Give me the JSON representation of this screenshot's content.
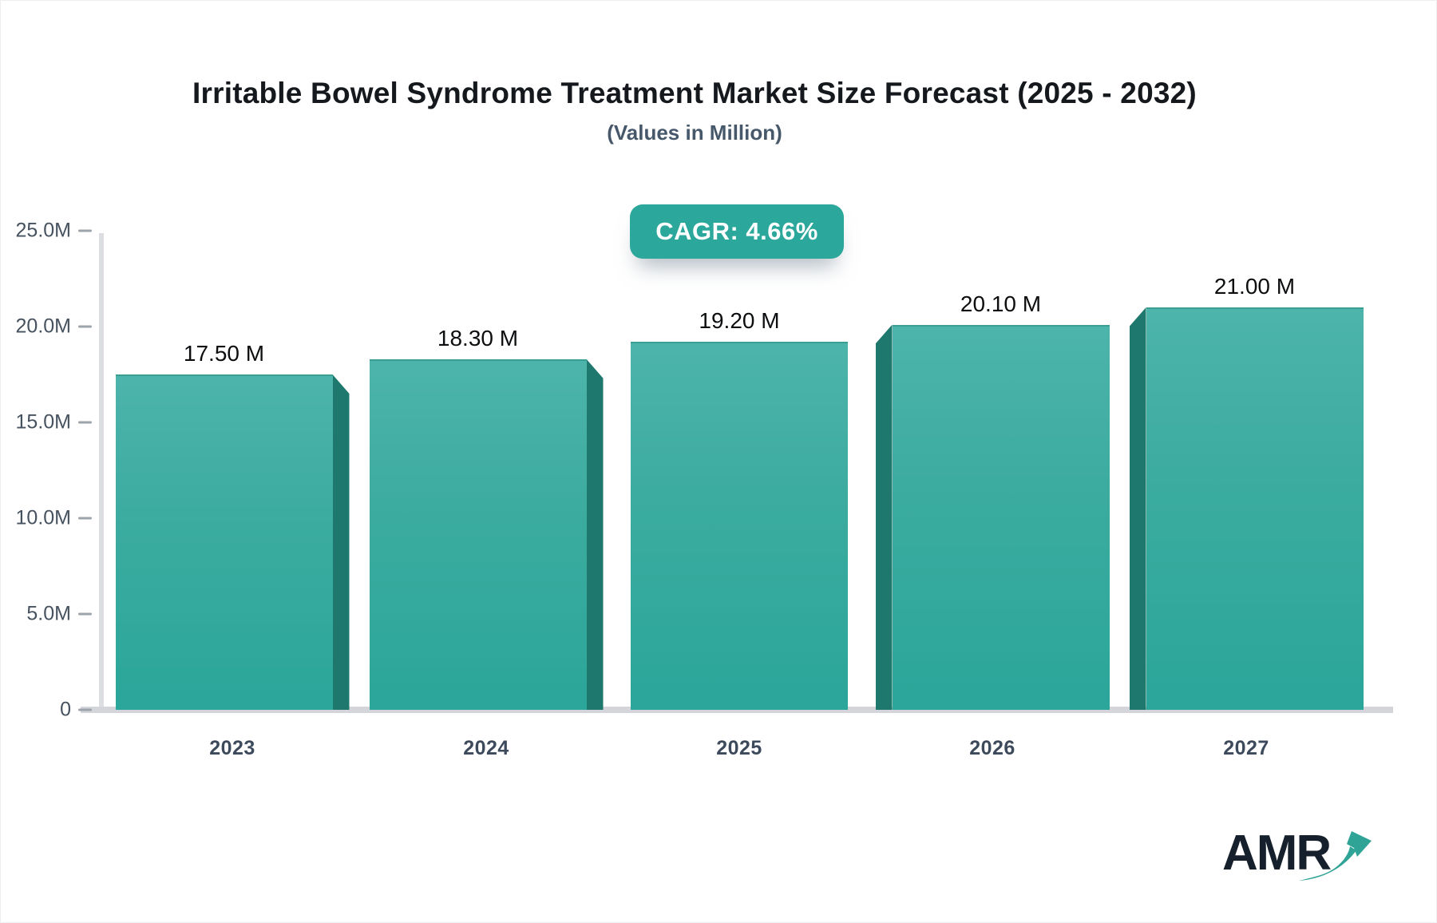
{
  "header": {
    "title": "Irritable Bowel Syndrome Treatment Market Size Forecast (2025 - 2032)",
    "subtitle": "(Values in Million)"
  },
  "badge": {
    "label": "CAGR: 4.66%",
    "background": "#2ba79b",
    "text_color": "#ffffff"
  },
  "chart_data": {
    "type": "bar",
    "title": "Irritable Bowel Syndrome Treatment Market Size Forecast (2025 - 2032)",
    "subtitle": "(Values in Million)",
    "unit": "Million",
    "categories": [
      "2023",
      "2024",
      "2025",
      "2026",
      "2027"
    ],
    "values": [
      17.5,
      18.3,
      19.2,
      20.1,
      21.0
    ],
    "value_labels": [
      "17.50 M",
      "18.30 M",
      "19.20 M",
      "20.10 M",
      "21.00 M"
    ],
    "annotations": [
      "CAGR: 4.66%"
    ],
    "ylim": [
      0,
      25
    ],
    "y_ticks": [
      {
        "label": "0",
        "value": 0
      },
      {
        "label": "5.0M",
        "value": 5
      },
      {
        "label": "10.0M",
        "value": 10
      },
      {
        "label": "15.0M",
        "value": 15
      },
      {
        "label": "20.0M",
        "value": 20
      },
      {
        "label": "25.0M",
        "value": 25
      }
    ],
    "grid": false,
    "legend_position": "none",
    "colors": {
      "bar_top": "#4db4ab",
      "bar_bottom": "#2ba69a",
      "bar_side": "#1f786e",
      "axis_line": "#dcdee2",
      "baseline": "#d3d5da",
      "tick_dash": "#9ca3aa",
      "axis_text": "#46525f"
    }
  },
  "logo": {
    "text": "AMR",
    "text_color": "#16202c",
    "arrow_color": "#2fa396",
    "arrow_icon": "trend-up-arrow"
  }
}
